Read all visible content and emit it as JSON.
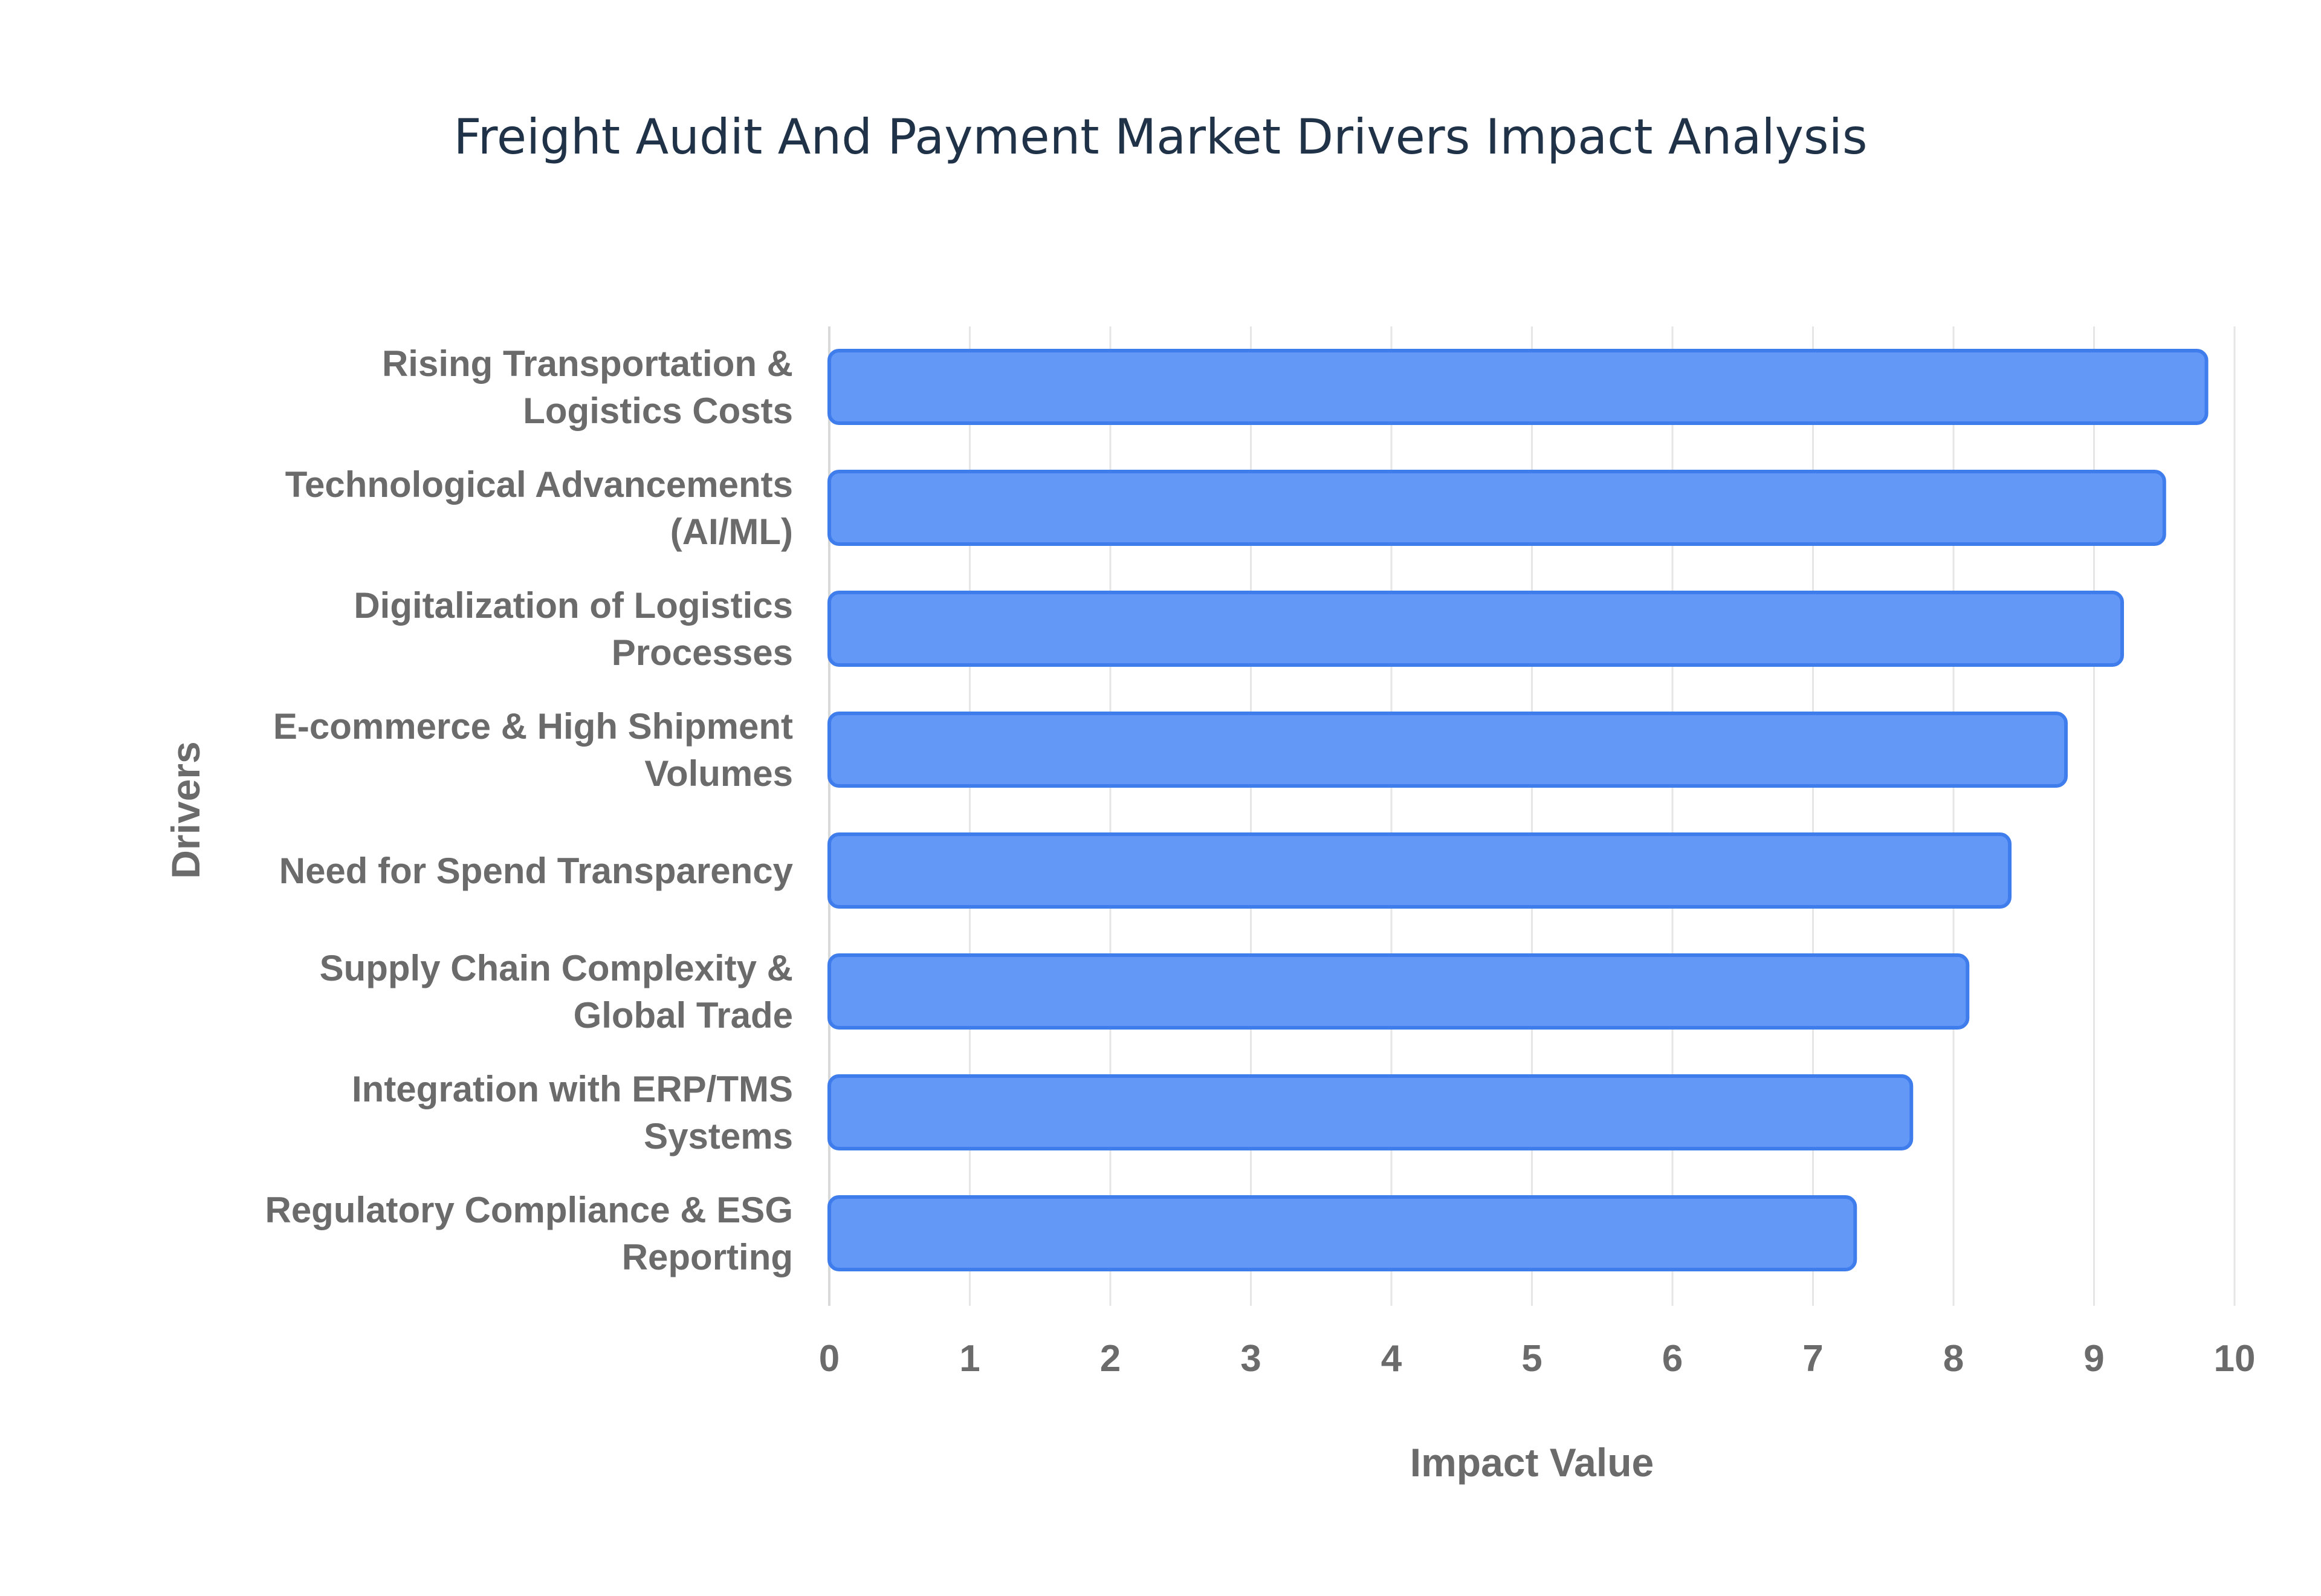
{
  "chart_data": {
    "type": "bar",
    "orientation": "horizontal",
    "title": "Freight Audit And Payment Market Drivers Impact Analysis",
    "xlabel": "Impact Value",
    "ylabel": "Drivers",
    "xlim": [
      0,
      10
    ],
    "x_ticks": [
      "0",
      "1",
      "2",
      "3",
      "4",
      "5",
      "6",
      "7",
      "8",
      "9",
      "10"
    ],
    "grid": true,
    "bar_color": "#6398f7",
    "bar_border_color": "#3f7ded",
    "categories": [
      [
        "Rising Transportation &",
        "Logistics Costs"
      ],
      [
        "Technological Advancements",
        "(AI/ML)"
      ],
      [
        "Digitalization of Logistics",
        "Processes"
      ],
      [
        "E-commerce & High Shipment",
        "Volumes"
      ],
      [
        "Need for Spend Transparency"
      ],
      [
        "Supply Chain Complexity &",
        "Global Trade"
      ],
      [
        "Integration with ERP/TMS",
        "Systems"
      ],
      [
        "Regulatory Compliance & ESG",
        "Reporting"
      ]
    ],
    "values": [
      9.8,
      9.5,
      9.2,
      8.8,
      8.4,
      8.1,
      7.7,
      7.3
    ]
  }
}
